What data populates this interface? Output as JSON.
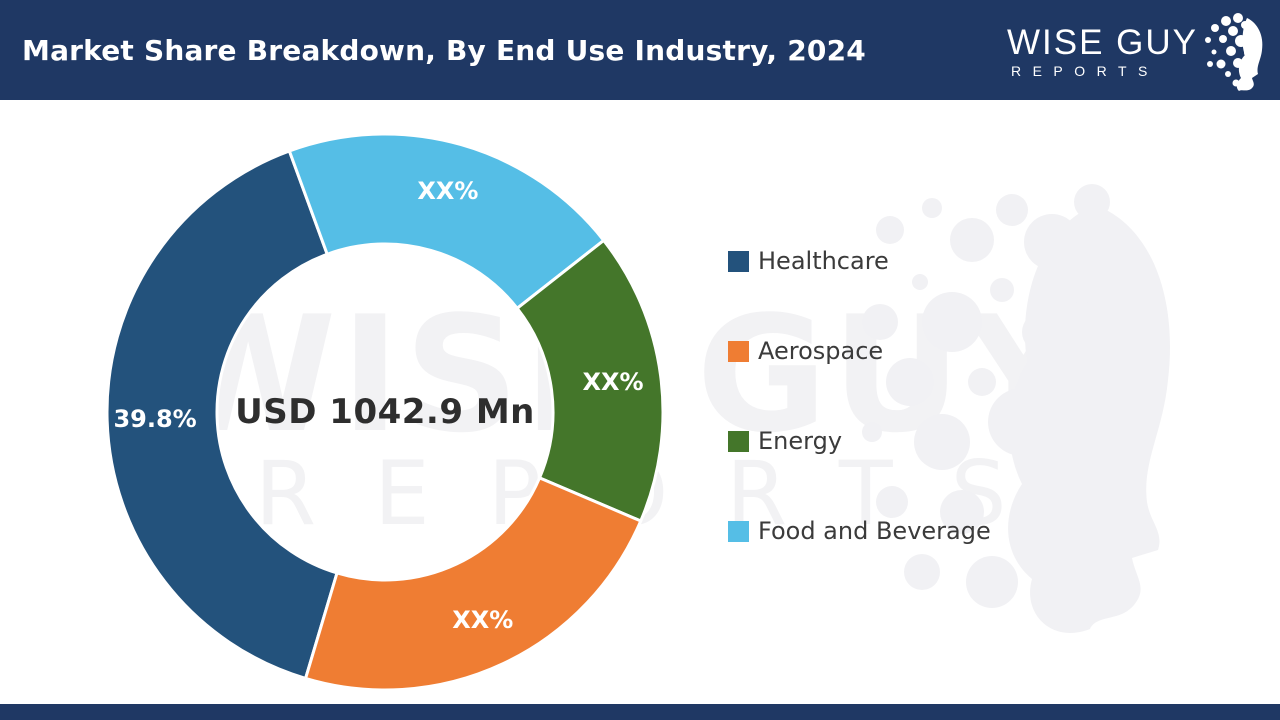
{
  "header": {
    "title": "Market Share Breakdown, By End Use Industry, 2024",
    "bg_color": "#1f3864",
    "logo": {
      "line1": "WISE GUY",
      "line2": "REPORTS"
    }
  },
  "watermark": {
    "line1": "WISE GUY",
    "line2": "REPORTS"
  },
  "chart_data": {
    "type": "pie",
    "subtype": "donut",
    "title": "Market Share Breakdown, By End Use Industry, 2024",
    "center_label": "USD 1042.9 Mn",
    "units": "percent of market share",
    "legend_position": "right",
    "start_angle_deg": 196.6,
    "draw_order": [
      "Healthcare",
      "Food and Beverage",
      "Energy",
      "Aerospace"
    ],
    "slices": [
      {
        "label": "Healthcare",
        "value_pct": 39.8,
        "display": "39.8%",
        "color": "#23527c"
      },
      {
        "label": "Aerospace",
        "value_pct": 23.2,
        "display": "XX%",
        "color": "#ef7d33"
      },
      {
        "label": "Energy",
        "value_pct": 17.0,
        "display": "XX%",
        "color": "#44762a"
      },
      {
        "label": "Food and Beverage",
        "value_pct": 20.0,
        "display": "XX%",
        "color": "#55bee6"
      }
    ],
    "geometry": {
      "outer_radius": 278,
      "inner_radius": 168,
      "label_radius": 230,
      "size": 560
    }
  },
  "footer": {
    "bg_color": "#1f3864"
  }
}
